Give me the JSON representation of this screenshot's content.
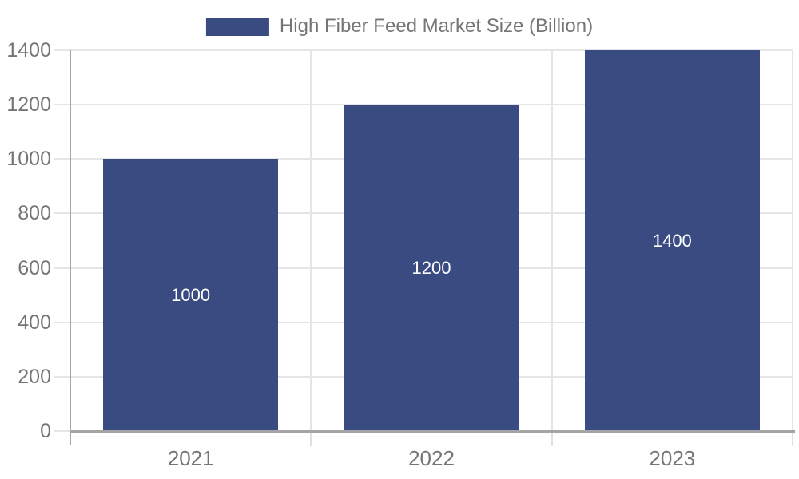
{
  "chart_data": {
    "type": "bar",
    "title": "High Fiber Feed Market Size (Billion)",
    "categories": [
      "2021",
      "2022",
      "2023"
    ],
    "series": [
      {
        "name": "High Fiber Feed Market Size (Billion)",
        "values": [
          1000,
          1200,
          1400
        ]
      }
    ],
    "value_labels": [
      "1000",
      "1200",
      "1400"
    ],
    "ylim": [
      0,
      1400
    ],
    "ytick_step": 200,
    "ytick_labels": [
      "0",
      "200",
      "400",
      "600",
      "800",
      "1000",
      "1200",
      "1400"
    ],
    "grid": true,
    "legend_position": "top-center",
    "colors": {
      "bar": "#394B81",
      "grid": "#e5e5e5",
      "boundary_tick": "#e0e0e0",
      "axis_line": "#a5a5a5",
      "tick_label": "#757575",
      "legend_label": "#757575",
      "value_label": "#ffffff",
      "background": "#ffffff"
    }
  }
}
